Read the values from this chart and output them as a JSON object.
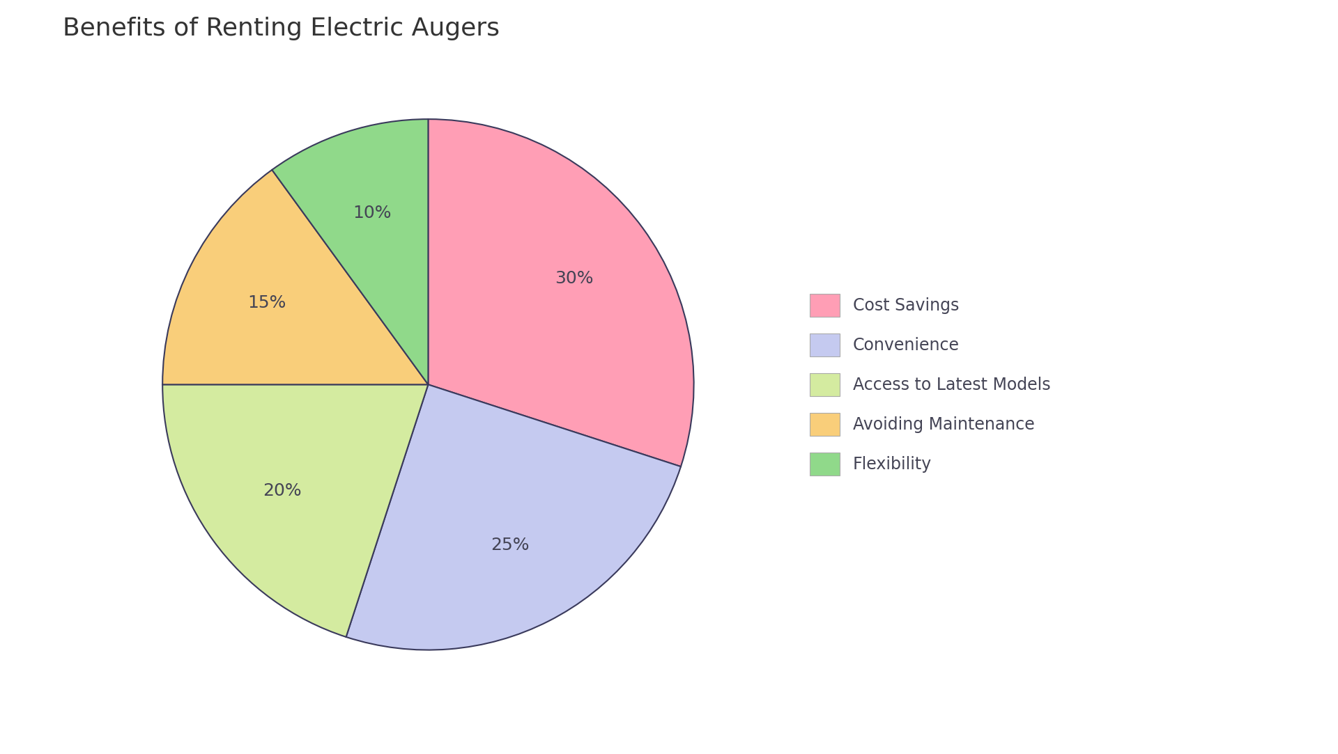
{
  "title": "Benefits of Renting Electric Augers",
  "title_fontsize": 26,
  "title_color": "#333333",
  "labels": [
    "Cost Savings",
    "Convenience",
    "Access to Latest Models",
    "Avoiding Maintenance",
    "Flexibility"
  ],
  "values": [
    30,
    25,
    20,
    15,
    10
  ],
  "colors": [
    "#FF9EB5",
    "#C5CAF0",
    "#D4EBA0",
    "#F9CE7A",
    "#90D98A"
  ],
  "startangle": 90,
  "edge_color": "#3A3A5C",
  "edge_width": 1.5,
  "text_color": "#444455",
  "text_fontsize": 18,
  "legend_fontsize": 17,
  "background_color": "#ffffff",
  "pctdistance": 0.68
}
